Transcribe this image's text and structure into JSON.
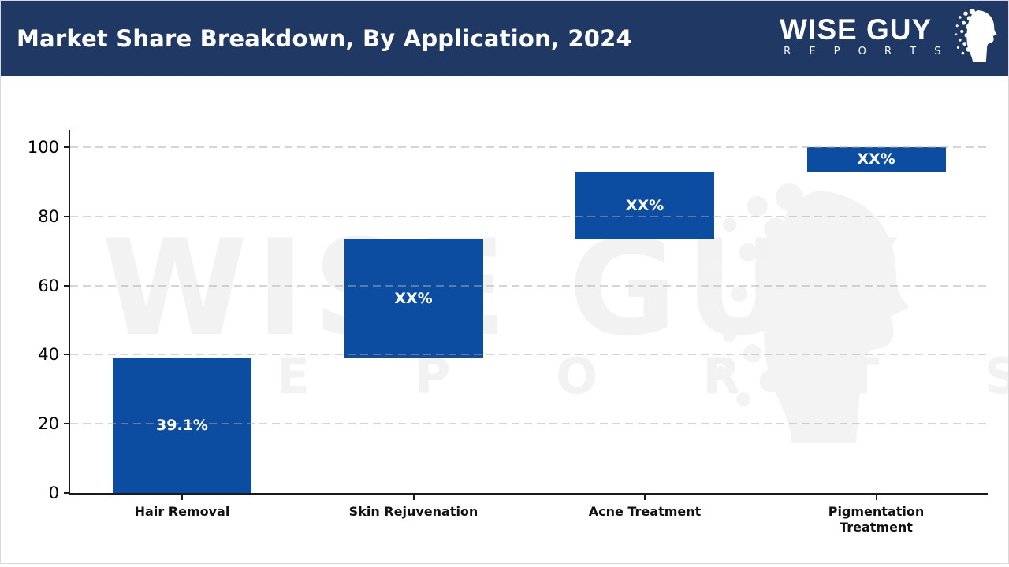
{
  "header": {
    "title": "Market Share Breakdown, By Application, 2024",
    "logo": {
      "wordmark": "WISE GUY",
      "subtext": "R E P O R T S"
    }
  },
  "watermark": {
    "line1": "WISE GUY",
    "line2": "R E P O R T S"
  },
  "colors": {
    "header_bg": "#1F3864",
    "bar": "#0C4DA2",
    "axis": "#1a1a1a",
    "gridline": "#d9d9d9",
    "watermark": "#f2f2f2",
    "frame_border": "#d9d9d9",
    "value_label": "#ffffff"
  },
  "chart_data": {
    "type": "bar",
    "subtype": "waterfall",
    "title": "Market Share Breakdown, By Application, 2024",
    "categories": [
      "Hair Removal",
      "Skin Rejuvenation",
      "Acne Treatment",
      "Pigmentation\nTreatment"
    ],
    "segments": [
      {
        "category": "Hair Removal",
        "start": 0,
        "end": 39.1,
        "label": "39.1%"
      },
      {
        "category": "Skin Rejuvenation",
        "start": 39.1,
        "end": 73.3,
        "label": "XX%"
      },
      {
        "category": "Acne Treatment",
        "start": 73.3,
        "end": 93.0,
        "label": "XX%"
      },
      {
        "category": "Pigmentation Treatment",
        "start": 93.0,
        "end": 100.0,
        "label": "XX%"
      }
    ],
    "yticks": [
      0,
      20,
      40,
      60,
      80,
      100
    ],
    "ylim": [
      0,
      105
    ],
    "xlabel": "",
    "ylabel": "",
    "grid": "horizontal-dashed",
    "legend": "none"
  }
}
